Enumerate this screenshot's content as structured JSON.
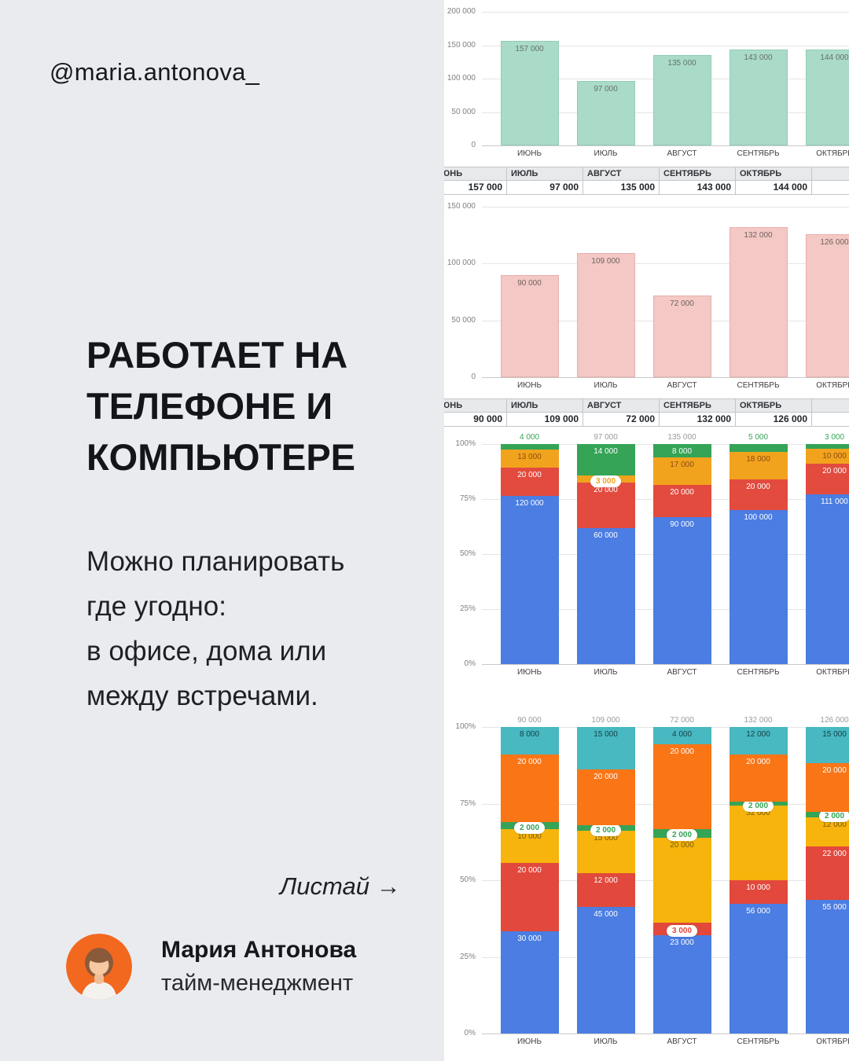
{
  "left_panel": {
    "handle": "@maria.antonova_",
    "headline_lines": [
      "РАБОТАЕТ НА",
      "ТЕЛЕФОНЕ И",
      "КОМПЬЮТЕРЕ"
    ],
    "body_lines": [
      "Можно планировать",
      "где угодно:",
      "в офисе, дома или",
      "между встречами."
    ],
    "swipe_hint": "Листай →",
    "profile": {
      "name": "Мария Антонова",
      "role": "тайм-менеджмент"
    },
    "colors": {
      "background": "#e9ebee",
      "text": "#1d2025",
      "avatar_background": "#f2681f"
    }
  },
  "tables": [
    {
      "headers": [
        "ИЮНЬ",
        "ИЮЛЬ",
        "АВГУСТ",
        "СЕНТЯБРЬ",
        "ОКТЯБРЬ",
        ""
      ],
      "values": [
        "157 000",
        "97 000",
        "135 000",
        "143 000",
        "144 000",
        ""
      ]
    },
    {
      "headers": [
        "ИЮНЬ",
        "ИЮЛЬ",
        "АВГУСТ",
        "СЕНТЯБРЬ",
        "ОКТЯБРЬ",
        ""
      ],
      "values": [
        "90 000",
        "109 000",
        "72 000",
        "132 000",
        "126 000",
        ""
      ]
    }
  ],
  "chart_data": [
    {
      "type": "bar",
      "title": "",
      "categories": [
        "ИЮНЬ",
        "ИЮЛЬ",
        "АВГУСТ",
        "СЕНТЯБРЬ",
        "ОКТЯБРЬ"
      ],
      "values": [
        157000,
        97000,
        135000,
        143000,
        144000
      ],
      "value_labels": [
        "157 000",
        "97 000",
        "135 000",
        "143 000",
        "144 000"
      ],
      "ylim": [
        0,
        200000
      ],
      "y_ticks": [
        "200 000",
        "150 000",
        "100 000",
        "50 000",
        "0"
      ],
      "grid": true,
      "bar_color": "#a9dbc8",
      "bar_border": "#92cdb5",
      "value_label_color": "#66706a"
    },
    {
      "type": "bar",
      "title": "",
      "categories": [
        "ИЮНЬ",
        "ИЮЛЬ",
        "АВГУСТ",
        "СЕНТЯБРЬ",
        "ОКТЯБРЬ"
      ],
      "values": [
        90000,
        109000,
        72000,
        132000,
        126000
      ],
      "value_labels": [
        "90 000",
        "109 000",
        "72 000",
        "132 000",
        "126 000"
      ],
      "ylim": [
        0,
        150000
      ],
      "y_ticks": [
        "150 000",
        "100 000",
        "50 000",
        "0"
      ],
      "grid": true,
      "bar_color": "#f4c8c4",
      "bar_border": "#e7b0ab",
      "value_label_color": "#6e625f"
    },
    {
      "type": "stacked_bar_100",
      "title": "",
      "categories": [
        "ИЮНЬ",
        "ИЮЛЬ",
        "АВГУСТ",
        "СЕНТЯБРЬ",
        "ОКТЯБРЬ"
      ],
      "y_ticks": [
        "100%",
        "75%",
        "50%",
        "25%",
        "0%"
      ],
      "series": [
        {
          "key": "blue",
          "color": "#4b7de2",
          "label_color": "#ffffff"
        },
        {
          "key": "red",
          "color": "#e24b3e",
          "label_color": "#ffffff"
        },
        {
          "key": "yellow",
          "color": "#f2a31d",
          "label_color": "#8a4d11"
        },
        {
          "key": "green",
          "color": "#35a456",
          "label_color": "#ffffff"
        }
      ],
      "columns": [
        {
          "category": "ИЮНЬ",
          "total": 157000,
          "top_label": {
            "text": "4 000",
            "color": "#35a456"
          },
          "segments": [
            {
              "series": 0,
              "value": 120000,
              "label": "120 000",
              "style": "inside"
            },
            {
              "series": 1,
              "value": 20000,
              "label": "20 000",
              "style": "inside"
            },
            {
              "series": 2,
              "value": 13000,
              "label": "13 000",
              "style": "inside"
            },
            {
              "series": 3,
              "value": 4000,
              "label": "4 000",
              "style": "none"
            }
          ]
        },
        {
          "category": "ИЮЛЬ",
          "total": 97000,
          "top_label": {
            "text": "97 000",
            "color": "#9b9b9b"
          },
          "segments": [
            {
              "series": 0,
              "value": 60000,
              "label": "60 000",
              "style": "inside"
            },
            {
              "series": 1,
              "value": 20000,
              "label": "20 000",
              "style": "inside"
            },
            {
              "series": 2,
              "value": 3000,
              "label": "3 000",
              "style": "pill"
            },
            {
              "series": 3,
              "value": 14000,
              "label": "14 000",
              "style": "inside"
            }
          ]
        },
        {
          "category": "АВГУСТ",
          "total": 135000,
          "top_label": {
            "text": "135 000",
            "color": "#9b9b9b"
          },
          "segments": [
            {
              "series": 0,
              "value": 90000,
              "label": "90 000",
              "style": "inside"
            },
            {
              "series": 1,
              "value": 20000,
              "label": "20 000",
              "style": "inside"
            },
            {
              "series": 2,
              "value": 17000,
              "label": "17 000",
              "style": "inside"
            },
            {
              "series": 3,
              "value": 8000,
              "label": "8 000",
              "style": "inside"
            }
          ]
        },
        {
          "category": "СЕНТЯБРЬ",
          "total": 143000,
          "top_label": {
            "text": "5 000",
            "color": "#35a456"
          },
          "segments": [
            {
              "series": 0,
              "value": 100000,
              "label": "100 000",
              "style": "inside"
            },
            {
              "series": 1,
              "value": 20000,
              "label": "20 000",
              "style": "inside"
            },
            {
              "series": 2,
              "value": 18000,
              "label": "18 000",
              "style": "inside"
            },
            {
              "series": 3,
              "value": 5000,
              "label": "5 000",
              "style": "none"
            }
          ]
        },
        {
          "category": "ОКТЯБРЬ",
          "total": 144000,
          "top_label": {
            "text": "3 000",
            "color": "#35a456"
          },
          "segments": [
            {
              "series": 0,
              "value": 111000,
              "label": "111 000",
              "style": "inside"
            },
            {
              "series": 1,
              "value": 20000,
              "label": "20 000",
              "style": "inside"
            },
            {
              "series": 2,
              "value": 10000,
              "label": "10 000",
              "style": "inside"
            },
            {
              "series": 3,
              "value": 3000,
              "label": "3 000",
              "style": "none"
            }
          ]
        }
      ]
    },
    {
      "type": "stacked_bar_100",
      "title": "",
      "categories": [
        "ИЮНЬ",
        "ИЮЛЬ",
        "АВГУСТ",
        "СЕНТЯБРЬ",
        "ОКТЯБРЬ"
      ],
      "y_ticks": [
        "100%",
        "75%",
        "50%",
        "25%",
        "0%"
      ],
      "series": [
        {
          "key": "blue",
          "color": "#4b7de2",
          "label_color": "#ffffff"
        },
        {
          "key": "red",
          "color": "#e2483c",
          "label_color": "#ffffff"
        },
        {
          "key": "yellow",
          "color": "#f6b40c",
          "label_color": "#7c5b05"
        },
        {
          "key": "green",
          "color": "#35a456",
          "label_color": "#ffffff"
        },
        {
          "key": "orange",
          "color": "#f97516",
          "label_color": "#ffffff"
        },
        {
          "key": "teal",
          "color": "#48b8c1",
          "label_color": "#143f45"
        }
      ],
      "columns": [
        {
          "category": "ИЮНЬ",
          "total": 90000,
          "top_label": {
            "text": "90 000",
            "color": "#9b9b9b"
          },
          "segments": [
            {
              "series": 0,
              "value": 30000,
              "label": "30 000",
              "style": "inside"
            },
            {
              "series": 1,
              "value": 20000,
              "label": "20 000",
              "style": "inside"
            },
            {
              "series": 2,
              "value": 10000,
              "label": "10 000",
              "style": "inside"
            },
            {
              "series": 3,
              "value": 2000,
              "label": "2 000",
              "style": "pill"
            },
            {
              "series": 4,
              "value": 20000,
              "label": "20 000",
              "style": "inside"
            },
            {
              "series": 5,
              "value": 8000,
              "label": "8 000",
              "style": "inside"
            }
          ]
        },
        {
          "category": "ИЮЛЬ",
          "total": 109000,
          "top_label": {
            "text": "109 000",
            "color": "#9b9b9b"
          },
          "segments": [
            {
              "series": 0,
              "value": 45000,
              "label": "45 000",
              "style": "inside"
            },
            {
              "series": 1,
              "value": 12000,
              "label": "12 000",
              "style": "inside"
            },
            {
              "series": 2,
              "value": 15000,
              "label": "15 000",
              "style": "inside"
            },
            {
              "series": 3,
              "value": 2000,
              "label": "2 000",
              "style": "pill"
            },
            {
              "series": 4,
              "value": 20000,
              "label": "20 000",
              "style": "inside"
            },
            {
              "series": 5,
              "value": 15000,
              "label": "15 000",
              "style": "inside"
            }
          ]
        },
        {
          "category": "АВГУСТ",
          "total": 72000,
          "top_label": {
            "text": "72 000",
            "color": "#9b9b9b"
          },
          "segments": [
            {
              "series": 0,
              "value": 23000,
              "label": "23 000",
              "style": "inside"
            },
            {
              "series": 1,
              "value": 3000,
              "label": "3 000",
              "style": "pill"
            },
            {
              "series": 2,
              "value": 20000,
              "label": "20 000",
              "style": "inside"
            },
            {
              "series": 3,
              "value": 2000,
              "label": "2 000",
              "style": "pill"
            },
            {
              "series": 4,
              "value": 20000,
              "label": "20 000",
              "style": "inside"
            },
            {
              "series": 5,
              "value": 4000,
              "label": "4 000",
              "style": "inside"
            }
          ]
        },
        {
          "category": "СЕНТЯБРЬ",
          "total": 132000,
          "top_label": {
            "text": "132 000",
            "color": "#9b9b9b"
          },
          "segments": [
            {
              "series": 0,
              "value": 56000,
              "label": "56 000",
              "style": "inside"
            },
            {
              "series": 1,
              "value": 10000,
              "label": "10 000",
              "style": "inside"
            },
            {
              "series": 2,
              "value": 32000,
              "label": "32 000",
              "style": "inside"
            },
            {
              "series": 3,
              "value": 2000,
              "label": "2 000",
              "style": "pill"
            },
            {
              "series": 4,
              "value": 20000,
              "label": "20 000",
              "style": "inside"
            },
            {
              "series": 5,
              "value": 12000,
              "label": "12 000",
              "style": "inside"
            }
          ]
        },
        {
          "category": "ОКТЯБРЬ",
          "total": 126000,
          "top_label": {
            "text": "126 000",
            "color": "#9b9b9b"
          },
          "segments": [
            {
              "series": 0,
              "value": 55000,
              "label": "55 000",
              "style": "inside"
            },
            {
              "series": 1,
              "value": 22000,
              "label": "22 000",
              "style": "inside"
            },
            {
              "series": 2,
              "value": 12000,
              "label": "12 000",
              "style": "inside"
            },
            {
              "series": 3,
              "value": 2000,
              "label": "2 000",
              "style": "pill"
            },
            {
              "series": 4,
              "value": 20000,
              "label": "20 000",
              "style": "inside"
            },
            {
              "series": 5,
              "value": 15000,
              "label": "15 000",
              "style": "inside"
            }
          ]
        }
      ]
    }
  ]
}
